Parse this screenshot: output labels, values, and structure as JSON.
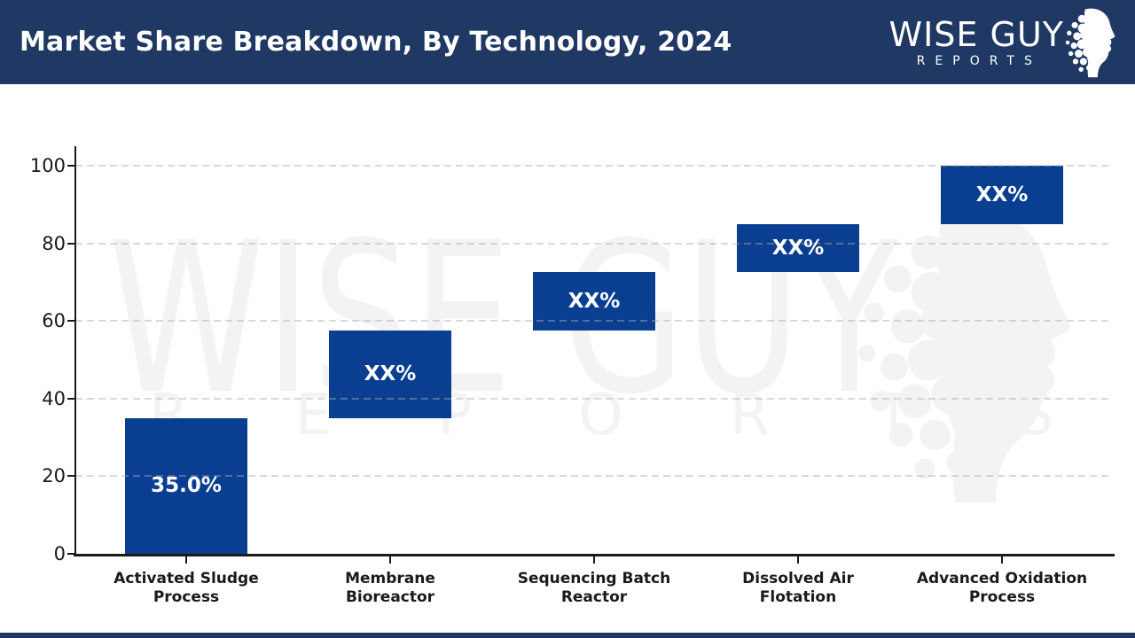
{
  "header": {
    "title": "Market Share Breakdown, By Technology, 2024",
    "background": "#1f3864",
    "logo": {
      "brand": "WISE GUY",
      "sub": "REPORTS"
    }
  },
  "watermark": {
    "brand": "WISE GUY",
    "sub": "R E P O R T S"
  },
  "footer": {
    "background": "#1f3864"
  },
  "chart_data": {
    "type": "bar",
    "variant": "waterfall",
    "title": "Market Share Breakdown, By Technology, 2024",
    "xlabel": "",
    "ylabel": "",
    "unit": "%",
    "categories": [
      "Activated Sludge Process",
      "Membrane Bioreactor",
      "Sequencing Batch Reactor",
      "Dissolved Air Flotation",
      "Advanced Oxidation Process"
    ],
    "category_lines": [
      [
        "Activated Sludge",
        "Process"
      ],
      [
        "Membrane",
        "Bioreactor"
      ],
      [
        "Sequencing Batch",
        "Reactor"
      ],
      [
        "Dissolved Air",
        "Flotation"
      ],
      [
        "Advanced Oxidation",
        "Process"
      ]
    ],
    "segments": [
      {
        "category": "Activated Sludge Process",
        "start": 0,
        "end": 35,
        "value": 35,
        "label": "35.0%"
      },
      {
        "category": "Membrane Bioreactor",
        "start": 35,
        "end": 57.5,
        "value": 22.5,
        "label": "XX%"
      },
      {
        "category": "Sequencing Batch Reactor",
        "start": 57.5,
        "end": 72.5,
        "value": 15,
        "label": "XX%"
      },
      {
        "category": "Dissolved Air Flotation",
        "start": 72.5,
        "end": 85,
        "value": 12.5,
        "label": "XX%"
      },
      {
        "category": "Advanced Oxidation Process",
        "start": 85,
        "end": 100,
        "value": 15,
        "label": "XX%"
      }
    ],
    "yticks": [
      0,
      20,
      40,
      60,
      80,
      100
    ],
    "ylim": [
      0,
      105
    ],
    "grid": {
      "horizontal": true,
      "style": "dashed",
      "drawn_over_bars": true,
      "color": "#e2e2e2"
    },
    "legend": null,
    "bar_color": "#0a3e91",
    "bar_label_color": "#ffffff",
    "axis_color": "#1a1a1a"
  }
}
